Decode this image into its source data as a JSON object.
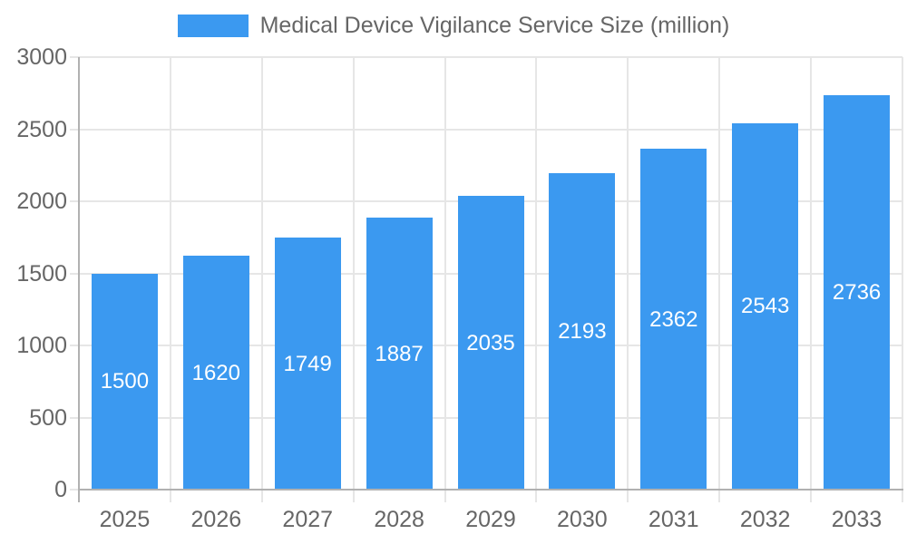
{
  "legend": {
    "label": "Medical Device Vigilance Service Size (million)"
  },
  "colors": {
    "accent": "#3B99F0",
    "grid": "#E6E6E6",
    "axis_border": "#B1B1B1",
    "text": "#666666",
    "value_label": "#FFFFFF",
    "background": "#FFFFFF"
  },
  "chart_data": {
    "type": "bar",
    "title": "Medical Device Vigilance Service Size (million)",
    "categories": [
      "2025",
      "2026",
      "2027",
      "2028",
      "2029",
      "2030",
      "2031",
      "2032",
      "2033"
    ],
    "values": [
      1500,
      1620,
      1749,
      1887,
      2035,
      2193,
      2362,
      2543,
      2736
    ],
    "xlabel": "",
    "ylabel": "",
    "ylim": [
      0,
      3000
    ],
    "ytick_step": 500,
    "yticks": [
      0,
      500,
      1000,
      1500,
      2000,
      2500,
      3000
    ],
    "grid": true,
    "legend_position": "top-center",
    "value_labels_position": "inside-center",
    "bar_color": "#3B99F0"
  }
}
